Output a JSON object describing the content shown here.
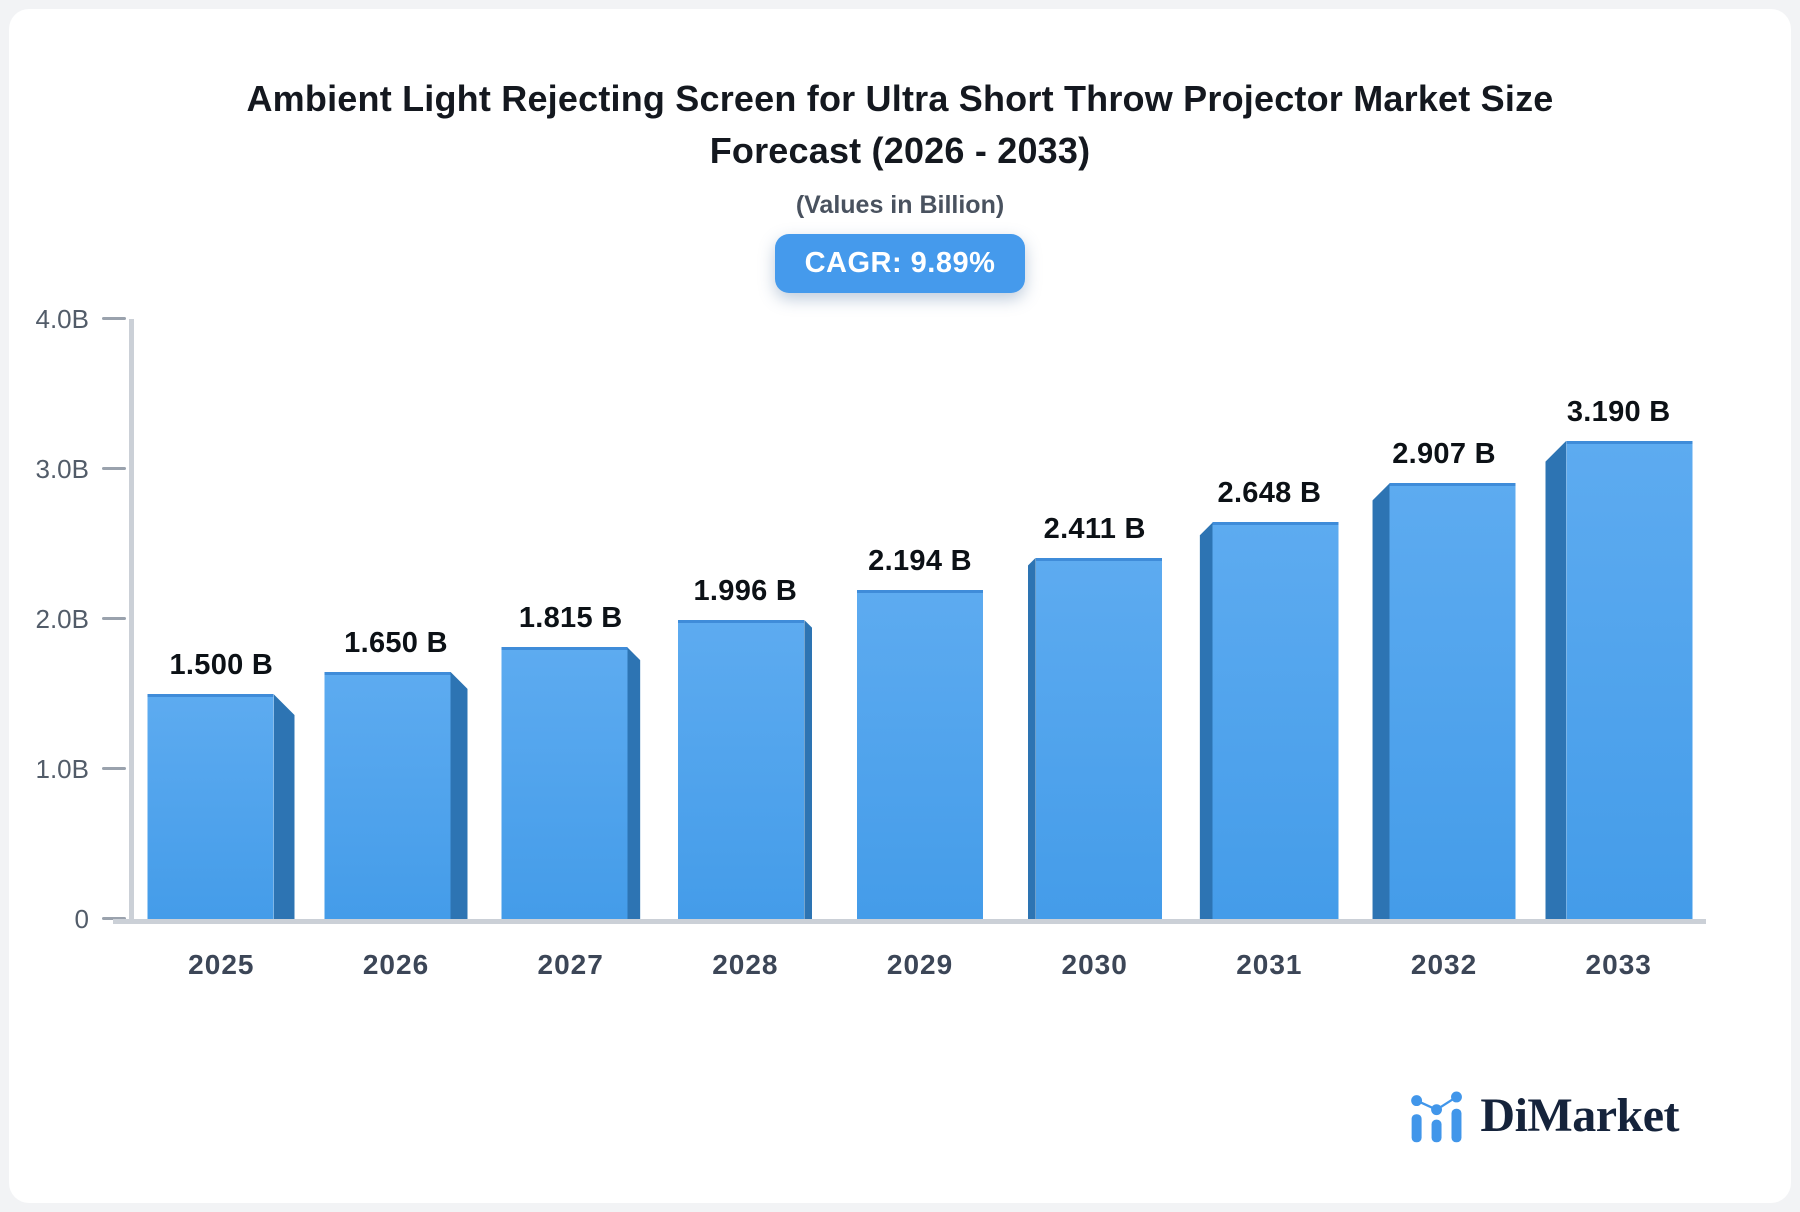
{
  "header": {
    "title": "Ambient Light Rejecting Screen for Ultra Short Throw Projector Market Size Forecast (2026 - 2033)",
    "subtitle": "(Values in Billion)",
    "badge": "CAGR: 9.89%"
  },
  "chart_data": {
    "type": "bar",
    "title": "Ambient Light Rejecting Screen for Ultra Short Throw Projector Market Size Forecast (2026 - 2033)",
    "subtitle": "(Values in Billion)",
    "cagr": "9.89%",
    "categories": [
      "2025",
      "2026",
      "2027",
      "2028",
      "2029",
      "2030",
      "2031",
      "2032",
      "2033"
    ],
    "values": [
      1.5,
      1.65,
      1.815,
      1.996,
      2.194,
      2.411,
      2.648,
      2.907,
      3.19
    ],
    "value_labels": [
      "1.500 B",
      "1.650 B",
      "1.815 B",
      "1.996 B",
      "2.194 B",
      "2.411 B",
      "2.648 B",
      "2.907 B",
      "3.190 B"
    ],
    "xlabel": "",
    "ylabel": "",
    "ylim": [
      0,
      4
    ],
    "yticks": [
      {
        "value": 4,
        "label": "4.0B"
      },
      {
        "value": 3,
        "label": "3.0B"
      },
      {
        "value": 2,
        "label": "2.0B"
      },
      {
        "value": 1,
        "label": "1.0B"
      },
      {
        "value": 0,
        "label": "0"
      }
    ],
    "grid": false,
    "legend": false,
    "colors": {
      "bar_main": "#4ea3ec",
      "bar_side": "#2d74b3",
      "bar_top_edge": "#3f8cd9",
      "badge_bg": "#459aec",
      "axis": "#cbd0d7",
      "tick_text": "#525c69",
      "category_text": "#3c4657",
      "value_text": "#0c1116"
    }
  },
  "footer": {
    "brand": "DiMarket",
    "logo_icon": "bar-chart-logo-icon",
    "brand_color": "#15233b",
    "logo_blue": "#4196ea"
  }
}
